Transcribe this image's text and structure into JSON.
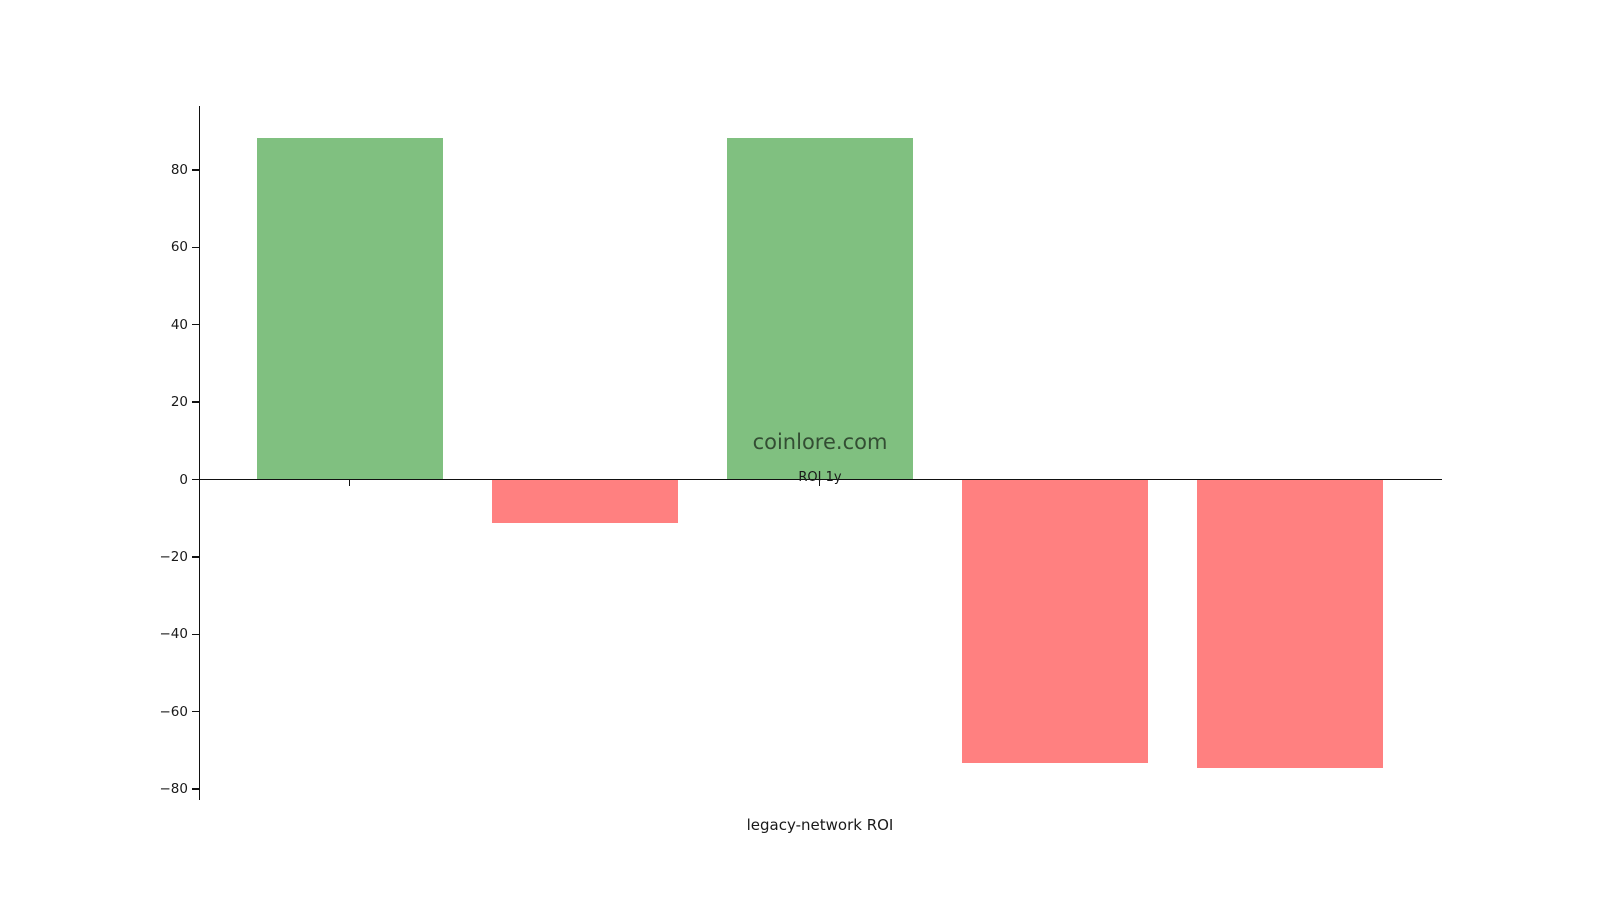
{
  "chart_data": {
    "type": "bar",
    "title": "",
    "xlabel": "legacy-network ROI",
    "ylabel": "",
    "categories": [
      "",
      "",
      "ROI 1y",
      "",
      ""
    ],
    "values": [
      88.2,
      -11.3,
      88.2,
      -73.3,
      -74.6
    ],
    "bar_colors": [
      "#80c080",
      "#ff8080",
      "#80c080",
      "#ff8080",
      "#ff8080"
    ],
    "positive_color": "#80c080",
    "negative_color": "#ff8080",
    "y_ticks": [
      80,
      60,
      40,
      20,
      0,
      -20,
      -40,
      -60,
      -80
    ],
    "y_tick_labels": [
      "80",
      "60",
      "40",
      "20",
      "0",
      "−20",
      "−40",
      "−60",
      "−80"
    ],
    "ylim": [
      -82.8,
      96.5
    ],
    "grid": false,
    "legend_position": "none",
    "watermark": "coinlore.com",
    "axis_color": "#111111",
    "tick_label_color": "#1a1a1a"
  }
}
